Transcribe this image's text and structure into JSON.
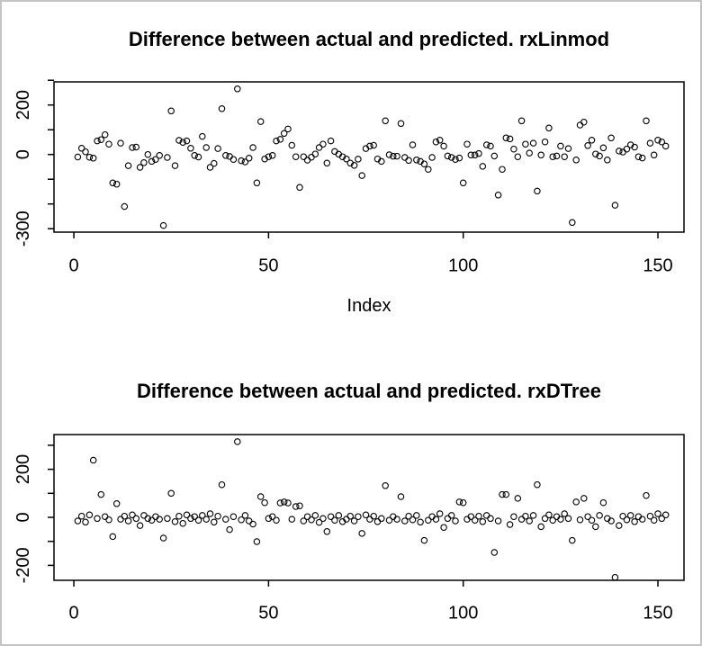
{
  "window": {
    "background": "#ffffff",
    "border_color": "#c4c4c4",
    "foreground": "#000000"
  },
  "chart_data": [
    {
      "type": "scatter",
      "title": "Difference between actual and predicted. rxLinmod",
      "xlabel": "Index",
      "ylabel": "",
      "marker": "open-circle",
      "grid": false,
      "legend": null,
      "x_start": 1,
      "xlim": [
        -5.1,
        156.7
      ],
      "ylim": [
        -313.8,
        293.5
      ],
      "x_ticks": [
        0,
        50,
        100,
        150
      ],
      "x_tick_labels": [
        "0",
        "50",
        "100",
        "150"
      ],
      "y_ticks": [
        300,
        200,
        100,
        0,
        -100,
        -200,
        -300
      ],
      "y_tick_labels": [
        "",
        "200",
        "",
        "0",
        "",
        "",
        "-300"
      ],
      "values": [
        -10,
        25,
        11,
        -11,
        -15,
        55,
        60,
        80,
        42,
        -115,
        -120,
        46,
        -210,
        -45,
        28,
        30,
        -52,
        -33,
        0,
        -28,
        -20,
        -4,
        -287,
        -12,
        176,
        -45,
        57,
        49,
        55,
        25,
        -4,
        -10,
        73,
        28,
        -52,
        -36,
        24,
        185,
        -4,
        -8,
        -20,
        265,
        -25,
        -30,
        -15,
        28,
        -115,
        133,
        -18,
        -9,
        -4,
        55,
        61,
        85,
        103,
        37,
        -9,
        -133,
        -9,
        -23,
        -11,
        2,
        28,
        42,
        -35,
        55,
        12,
        1,
        -9,
        -18,
        -35,
        -44,
        -19,
        -85,
        24,
        34,
        37,
        -18,
        -28,
        136,
        -1,
        -7,
        -7,
        125,
        -12,
        -24,
        39,
        -22,
        -28,
        -38,
        -60,
        -12,
        51,
        58,
        34,
        -6,
        -12,
        -20,
        -14,
        -115,
        42,
        -2,
        -2,
        4,
        -48,
        39,
        34,
        -6,
        -164,
        -60,
        67,
        63,
        22,
        -9,
        136,
        42,
        6,
        46,
        -148,
        -2,
        51,
        107,
        -9,
        -6,
        34,
        -9,
        24,
        -275,
        -22,
        119,
        131,
        36,
        58,
        2,
        -6,
        27,
        -22,
        67,
        -205,
        14,
        10,
        22,
        39,
        30,
        -9,
        -14,
        136,
        46,
        -2,
        58,
        51,
        34
      ]
    },
    {
      "type": "scatter",
      "title": "Difference between actual and predicted. rxDTree",
      "xlabel": "",
      "ylabel": "",
      "marker": "open-circle",
      "grid": false,
      "legend": null,
      "x_start": 1,
      "xlim": [
        -5.1,
        156.7
      ],
      "ylim": [
        -262.2,
        344.6
      ],
      "x_ticks": [
        0,
        50,
        100,
        150
      ],
      "x_tick_labels": [
        "0",
        "50",
        "100",
        "150"
      ],
      "y_ticks": [
        300,
        200,
        100,
        0,
        -100,
        -200
      ],
      "y_tick_labels": [
        "",
        "200",
        "",
        "0",
        "",
        "-200"
      ],
      "values": [
        -15,
        5,
        -20,
        10,
        238,
        -5,
        95,
        3,
        -10,
        -80,
        57,
        -8,
        5,
        -15,
        10,
        -5,
        -34,
        8,
        -5,
        -12,
        3,
        -8,
        -86,
        -5,
        100,
        -18,
        5,
        -25,
        10,
        -5,
        3,
        -12,
        8,
        -8,
        15,
        -20,
        5,
        136,
        -8,
        -51,
        3,
        315,
        -10,
        8,
        -15,
        -28,
        -101,
        86,
        61,
        -5,
        3,
        -12,
        60,
        64,
        60,
        -8,
        45,
        48,
        -15,
        3,
        -10,
        8,
        -21,
        -5,
        -59,
        3,
        -12,
        8,
        -18,
        -8,
        5,
        -15,
        3,
        -67,
        10,
        -8,
        5,
        -18,
        -5,
        132,
        -12,
        3,
        -8,
        86,
        -15,
        5,
        -10,
        8,
        -20,
        -96,
        -12,
        3,
        -8,
        15,
        -42,
        -5,
        8,
        -15,
        64,
        61,
        -8,
        3,
        -12,
        5,
        -18,
        8,
        -5,
        -146,
        -15,
        95,
        95,
        -30,
        3,
        79,
        -8,
        5,
        -15,
        8,
        136,
        -39,
        -5,
        10,
        -12,
        3,
        -8,
        15,
        -5,
        -96,
        64,
        -10,
        79,
        3,
        -12,
        -39,
        8,
        61,
        -5,
        -15,
        -250,
        -34,
        5,
        -10,
        8,
        -18,
        3,
        -8,
        91,
        5,
        -12,
        15,
        -5,
        10
      ]
    }
  ]
}
